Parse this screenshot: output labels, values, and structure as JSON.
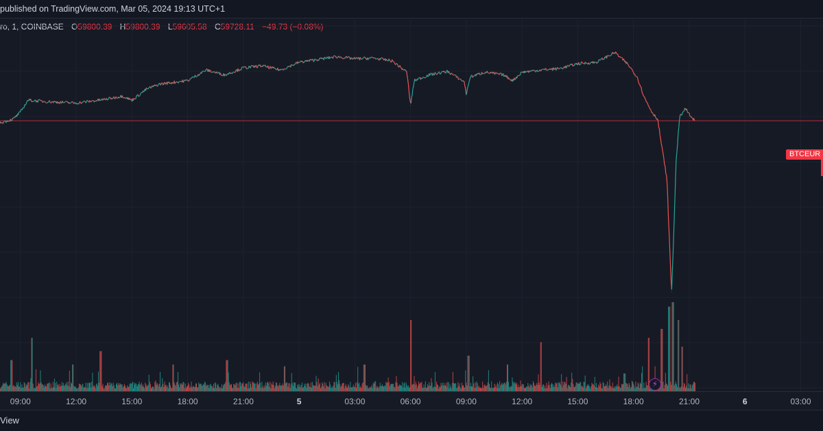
{
  "header": {
    "published_text": "published on TradingView.com, Mar 05, 2024 19:13 UTC+1"
  },
  "legend": {
    "symbol_text": "ro, 1, COINBASE",
    "open_label": "O",
    "open_value": "59800.39",
    "high_label": "H",
    "high_value": "59800.39",
    "low_label": "L",
    "low_value": "59605.58",
    "close_label": "C",
    "close_value": "59728.11",
    "change_text": "−49.73 (−0.08%)"
  },
  "price_label": "BTCEUR",
  "footer": {
    "brand_text": "View"
  },
  "colors": {
    "background": "#161a25",
    "up": "#26a69a",
    "down": "#ef5350",
    "price_line": "#f23645",
    "grid": "#1e2230"
  },
  "icons": {
    "alert_badge": "lightning-bolt-icon"
  },
  "chart_data": {
    "type": "line",
    "title": "",
    "xlabel": "",
    "ylabel": "",
    "grid": true,
    "y_axis_labels_visible": false,
    "x_ticks": [
      "09:00",
      "12:00",
      "15:00",
      "18:00",
      "21:00",
      "5",
      "03:00",
      "06:00",
      "09:00",
      "12:00",
      "15:00",
      "18:00",
      "21:00",
      "6",
      "03:00"
    ],
    "x_tick_hours": [
      9,
      12,
      15,
      18,
      21,
      24,
      27,
      30,
      33,
      36,
      39,
      42,
      45,
      48,
      51
    ],
    "bold_ticks": [
      "5",
      "6"
    ],
    "x_range_hours": [
      7.9,
      52.2
    ],
    "last_price_level": 59728.11,
    "price_series": [
      {
        "t": 7.9,
        "p": 59700
      },
      {
        "t": 8.6,
        "p": 59750
      },
      {
        "t": 9.0,
        "p": 59850
      },
      {
        "t": 9.4,
        "p": 60020
      },
      {
        "t": 10.5,
        "p": 60000
      },
      {
        "t": 12.0,
        "p": 59980
      },
      {
        "t": 13.5,
        "p": 60030
      },
      {
        "t": 14.5,
        "p": 60080
      },
      {
        "t": 15.0,
        "p": 60020
      },
      {
        "t": 15.8,
        "p": 60180
      },
      {
        "t": 16.5,
        "p": 60250
      },
      {
        "t": 18.0,
        "p": 60300
      },
      {
        "t": 19.0,
        "p": 60450
      },
      {
        "t": 20.0,
        "p": 60380
      },
      {
        "t": 21.0,
        "p": 60480
      },
      {
        "t": 22.0,
        "p": 60510
      },
      {
        "t": 23.0,
        "p": 60450
      },
      {
        "t": 24.0,
        "p": 60560
      },
      {
        "t": 25.0,
        "p": 60600
      },
      {
        "t": 26.0,
        "p": 60640
      },
      {
        "t": 27.0,
        "p": 60610
      },
      {
        "t": 28.0,
        "p": 60620
      },
      {
        "t": 29.0,
        "p": 60580
      },
      {
        "t": 29.8,
        "p": 60420
      },
      {
        "t": 30.0,
        "p": 59950
      },
      {
        "t": 30.2,
        "p": 60300
      },
      {
        "t": 31.0,
        "p": 60380
      },
      {
        "t": 32.0,
        "p": 60430
      },
      {
        "t": 32.9,
        "p": 60280
      },
      {
        "t": 33.0,
        "p": 60100
      },
      {
        "t": 33.2,
        "p": 60350
      },
      {
        "t": 34.0,
        "p": 60420
      },
      {
        "t": 35.0,
        "p": 60380
      },
      {
        "t": 35.5,
        "p": 60300
      },
      {
        "t": 36.0,
        "p": 60420
      },
      {
        "t": 37.0,
        "p": 60450
      },
      {
        "t": 38.0,
        "p": 60470
      },
      {
        "t": 39.0,
        "p": 60540
      },
      {
        "t": 40.0,
        "p": 60560
      },
      {
        "t": 41.0,
        "p": 60700
      },
      {
        "t": 41.7,
        "p": 60530
      },
      {
        "t": 42.2,
        "p": 60350
      },
      {
        "t": 42.6,
        "p": 60050
      },
      {
        "t": 43.0,
        "p": 59850
      },
      {
        "t": 43.3,
        "p": 59750
      },
      {
        "t": 43.5,
        "p": 59400
      },
      {
        "t": 43.8,
        "p": 58900
      },
      {
        "t": 43.95,
        "p": 57900
      },
      {
        "t": 44.05,
        "p": 57300
      },
      {
        "t": 44.15,
        "p": 58000
      },
      {
        "t": 44.3,
        "p": 59200
      },
      {
        "t": 44.5,
        "p": 59800
      },
      {
        "t": 44.8,
        "p": 59900
      },
      {
        "t": 45.1,
        "p": 59780
      },
      {
        "t": 45.3,
        "p": 59728.11
      }
    ],
    "volume_spikes": [
      {
        "t": 8.5,
        "v": 0.35
      },
      {
        "t": 9.6,
        "v": 0.6
      },
      {
        "t": 11.8,
        "v": 0.3
      },
      {
        "t": 13.3,
        "v": 0.45
      },
      {
        "t": 17.2,
        "v": 0.3
      },
      {
        "t": 20.1,
        "v": 0.35
      },
      {
        "t": 23.2,
        "v": 0.28
      },
      {
        "t": 27.5,
        "v": 0.3
      },
      {
        "t": 30.0,
        "v": 0.8
      },
      {
        "t": 33.1,
        "v": 0.4
      },
      {
        "t": 35.2,
        "v": 0.3
      },
      {
        "t": 37.0,
        "v": 0.55
      },
      {
        "t": 41.5,
        "v": 0.2
      },
      {
        "t": 42.8,
        "v": 0.6
      },
      {
        "t": 43.5,
        "v": 0.7
      },
      {
        "t": 43.9,
        "v": 0.95
      },
      {
        "t": 44.1,
        "v": 1.0
      },
      {
        "t": 44.4,
        "v": 0.8
      },
      {
        "t": 44.6,
        "v": 0.5
      }
    ]
  }
}
